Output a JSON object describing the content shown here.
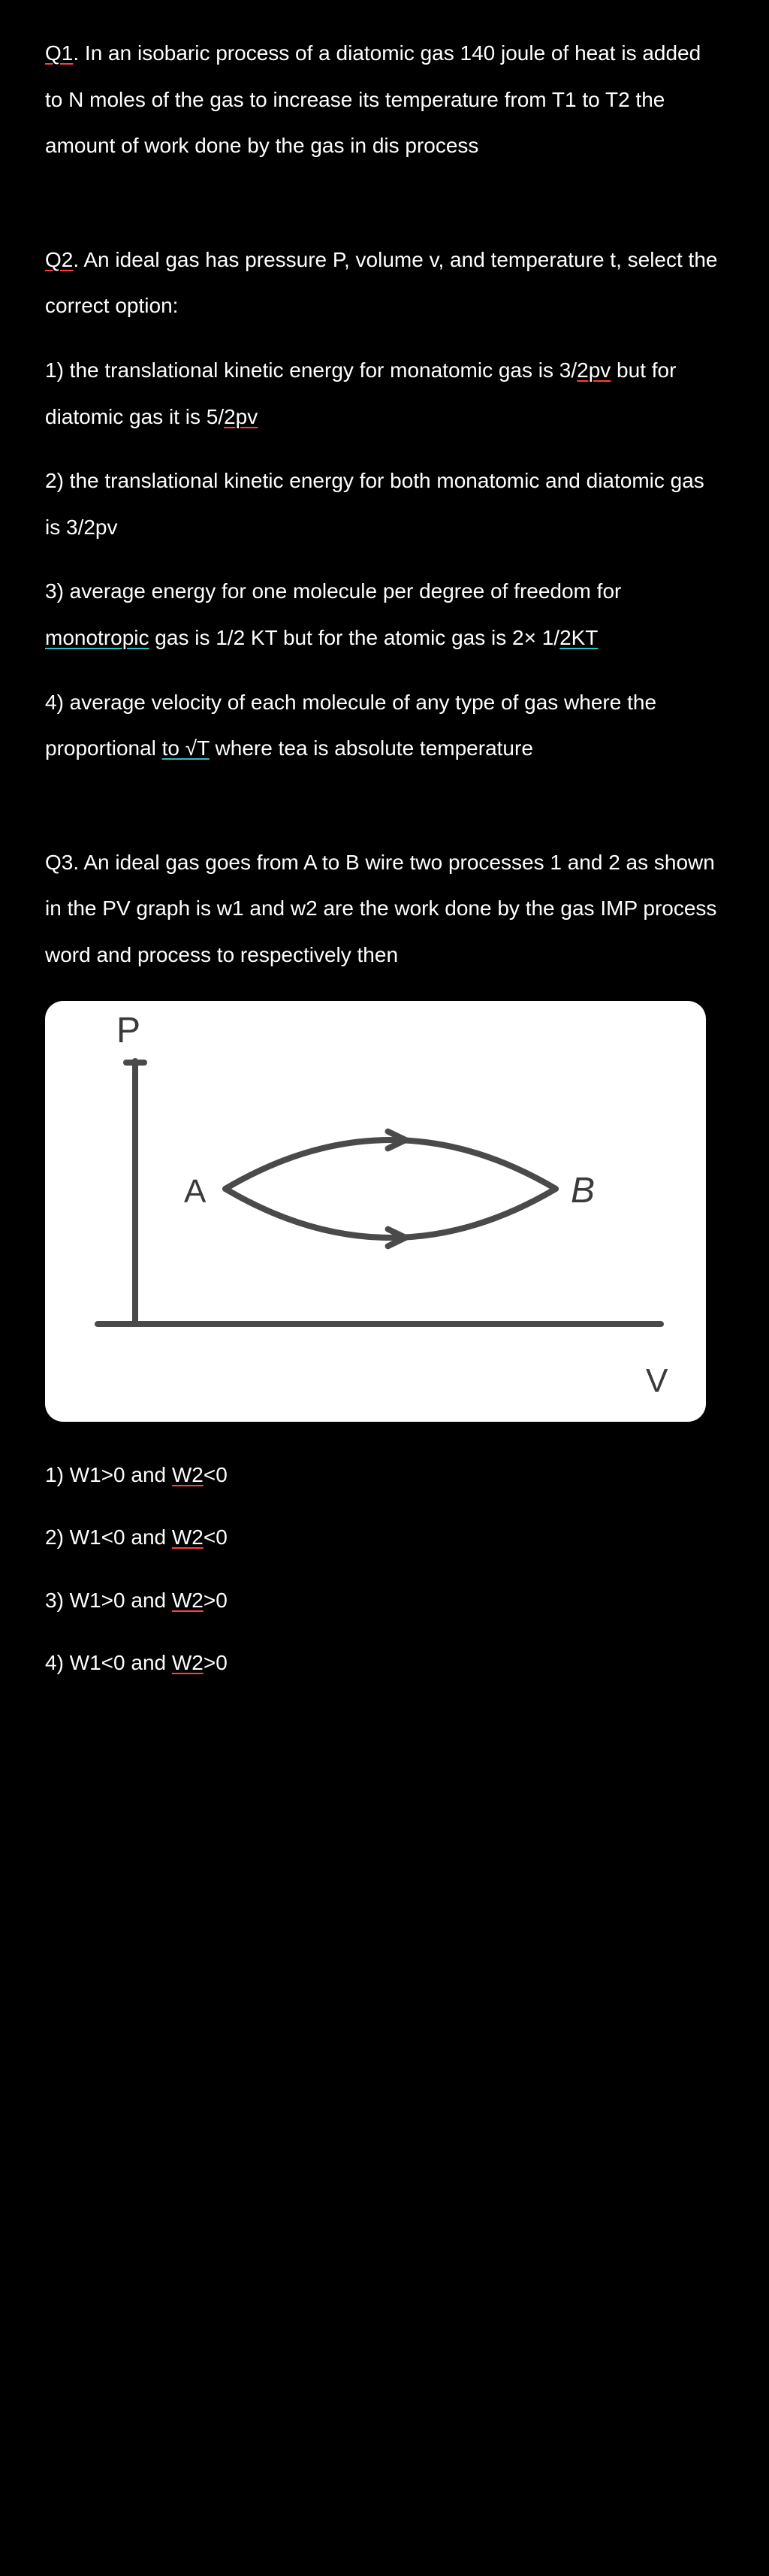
{
  "q1": {
    "label": "Q1",
    "text": ". In an isobaric process of a diatomic gas 140 joule of heat is added to N moles of the gas to increase its temperature from T1 to T2 the amount of work done by the gas in dis process"
  },
  "q2": {
    "label": "Q2",
    "intro": ". An ideal gas has pressure P, volume v, and temperature t, select the correct option:",
    "opt1a": "1) the translational kinetic energy for monatomic gas is 3/",
    "opt1b": "2pv",
    "opt1c": " but for diatomic gas it is 5/",
    "opt1d": "2pv",
    "opt2": "2) the translational kinetic energy for both monatomic and diatomic gas is 3/2pv",
    "opt3a": "3) average energy for one molecule per degree of freedom for ",
    "opt3b": "monotropic",
    "opt3c": " gas is 1/2 KT but for the atomic gas is 2× 1/",
    "opt3d": "2KT",
    "opt4a": "4) average velocity of each molecule of any type of gas where the proportional ",
    "opt4b": "to √T",
    "opt4c": " where tea is absolute temperature"
  },
  "q3": {
    "label": "Q3",
    "intro": ". An ideal gas goes from A to B wire two processes 1 and 2 as shown in the PV graph is w1 and w2 are the work done by the gas IMP process word and process to respectively then",
    "diagram": {
      "p_label": "P",
      "a_label": "A",
      "b_label": "B",
      "v_label": "V",
      "axis_color": "#4a4a4a",
      "curve_color": "#4a4a4a",
      "label_color": "#3a3a3a",
      "bg": "#ffffff",
      "stroke_width": 8
    },
    "ans1a": "1) W1>0 and ",
    "ans1b": "W2",
    "ans1c": "<0",
    "ans2a": "2) W1<0 and ",
    "ans2b": "W2",
    "ans2c": "<0",
    "ans3a": "3) W1>0 and ",
    "ans3b": "W2",
    "ans3c": ">0",
    "ans4a": "4) W1<0 and ",
    "ans4b": "W2",
    "ans4c": ">0"
  }
}
